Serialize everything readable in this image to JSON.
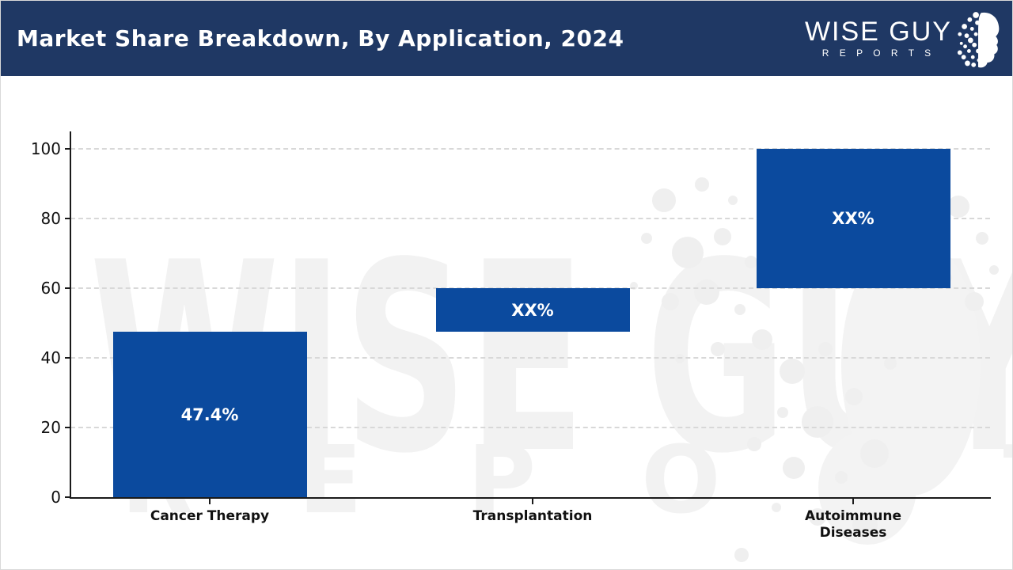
{
  "header": {
    "title": "Market Share Breakdown, By Application, 2024",
    "logo": {
      "name": "WISE GUY",
      "sub": "R E P O R T S"
    }
  },
  "watermark": {
    "line1": "WISE GUY",
    "line2": "R E P O R T S"
  },
  "colors": {
    "header_bg": "#1f3864",
    "bar": "#0b4a9e",
    "grid": "#d8d8d8",
    "axis": "#1a1a1a",
    "watermark": "#f2f2f2",
    "page_border": "#d9d9d9"
  },
  "chart_data": {
    "type": "bar",
    "variant": "floating-waterfall",
    "title": "Market Share Breakdown, By Application, 2024",
    "categories": [
      "Cancer Therapy",
      "Transplantation",
      "Autoimmune\nDiseases"
    ],
    "segments": [
      {
        "category": "Cancer Therapy",
        "start": 0,
        "end": 47.4,
        "label": "47.4%"
      },
      {
        "category": "Transplantation",
        "start": 47.4,
        "end": 60,
        "label": "XX%"
      },
      {
        "category": "Autoimmune Diseases",
        "start": 60,
        "end": 100,
        "label": "XX%"
      }
    ],
    "yticks": [
      0,
      20,
      40,
      60,
      80,
      100
    ],
    "ylim": [
      0,
      100
    ],
    "xlabel": "",
    "ylabel": "",
    "grid": "horizontal-dashed",
    "legend": "none",
    "bar_color": "#0b4a9e",
    "bar_label_color": "#ffffff"
  }
}
